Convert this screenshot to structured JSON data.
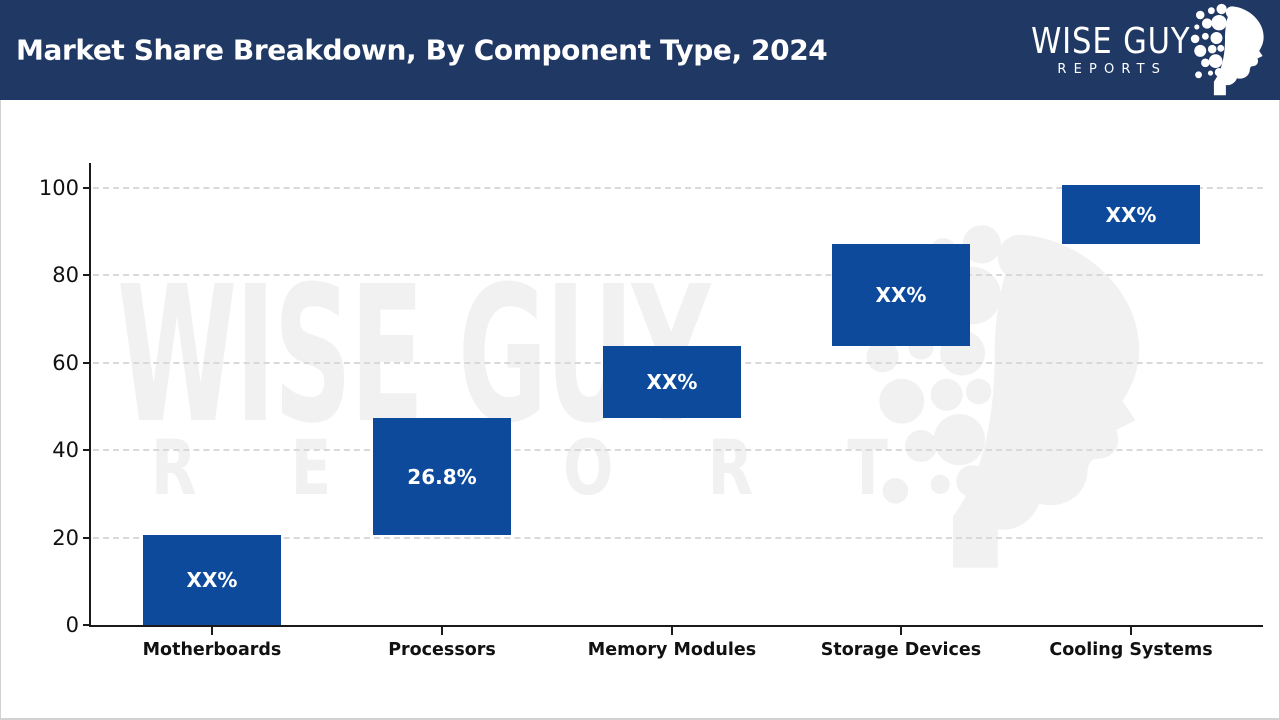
{
  "header": {
    "title": "Market Share Breakdown, By Component Type, 2024",
    "logo": {
      "line1": "WISE GUY",
      "line2": "REPORTS"
    }
  },
  "watermark": {
    "line1": "WISE GUY",
    "line2": "REPORTS"
  },
  "icons": {
    "brand_head": "dotted-head-profile-icon"
  },
  "colors": {
    "header_background": "#203864",
    "bar_fill": "#0d4a9c",
    "bar_label_text": "#ffffff",
    "gridline": "#d9d9d9",
    "axis": "#1a1a1a",
    "watermark": "#f1f1f1"
  },
  "chart_data": {
    "type": "bar",
    "subtype": "waterfall",
    "title": "Market Share Breakdown, By Component Type, 2024",
    "xlabel": "",
    "ylabel": "",
    "categories": [
      "Motherboards",
      "Processors",
      "Memory Modules",
      "Storage Devices",
      "Cooling Systems"
    ],
    "segments": [
      {
        "category": "Motherboards",
        "start": 0,
        "end": 20.5,
        "value": 20.5,
        "label": "XX%"
      },
      {
        "category": "Processors",
        "start": 20.5,
        "end": 47.3,
        "value": 26.8,
        "label": "26.8%"
      },
      {
        "category": "Memory Modules",
        "start": 47.3,
        "end": 63.7,
        "value": 16.4,
        "label": "XX%"
      },
      {
        "category": "Storage Devices",
        "start": 63.7,
        "end": 87.0,
        "value": 23.3,
        "label": "XX%"
      },
      {
        "category": "Cooling Systems",
        "start": 87.0,
        "end": 100.5,
        "value": 13.5,
        "label": "XX%"
      }
    ],
    "yticks": [
      0,
      20,
      40,
      60,
      80,
      100
    ],
    "ylim": [
      0,
      105.6
    ],
    "grid": "horizontal-dashed",
    "legend": "none"
  }
}
